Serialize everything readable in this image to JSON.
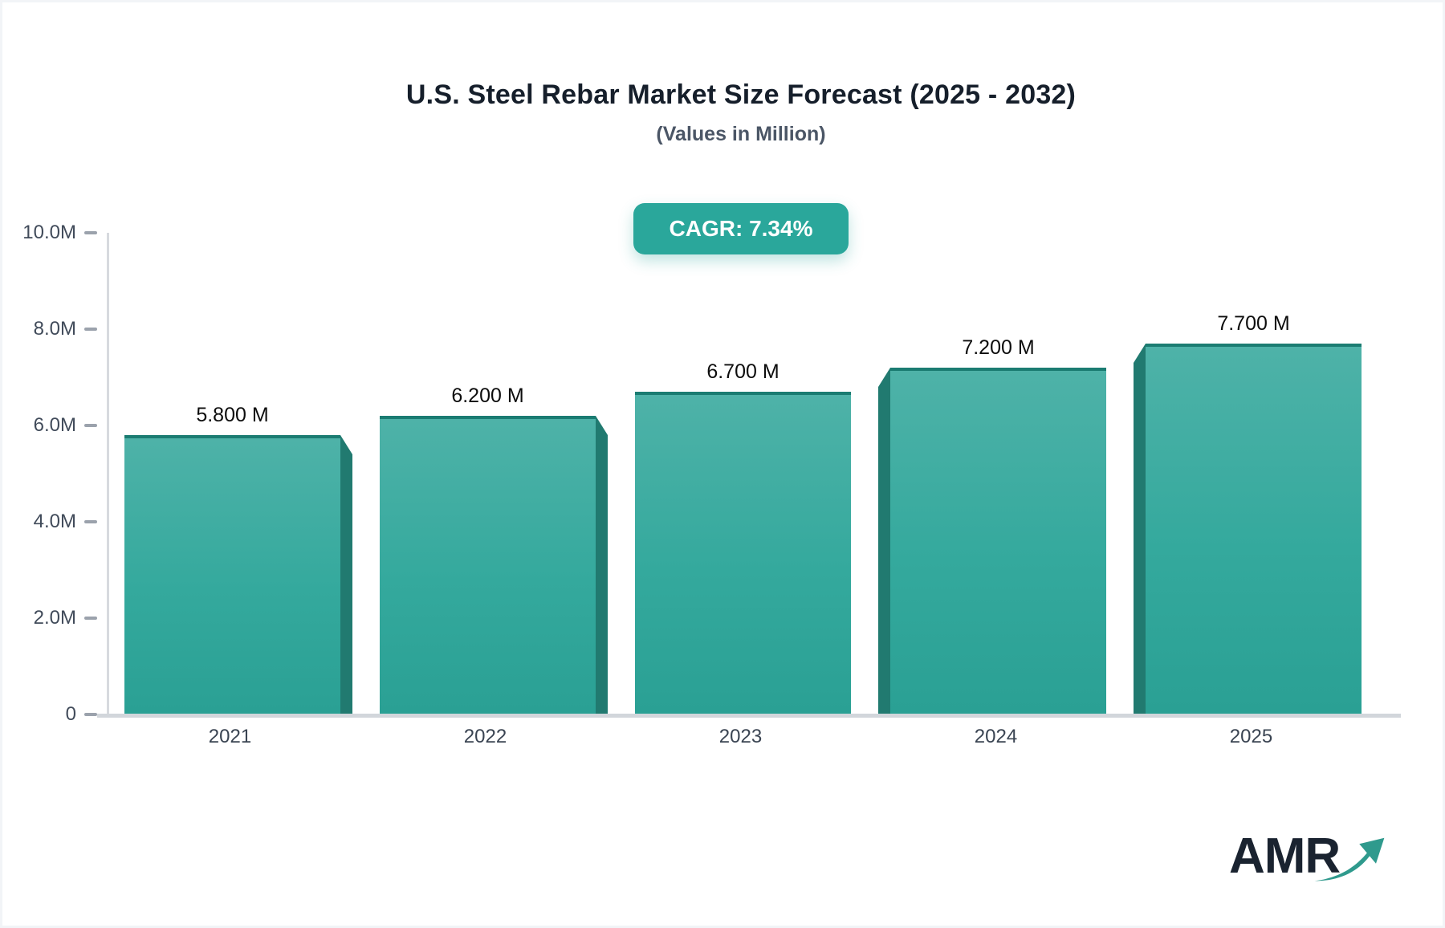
{
  "header": {
    "title": "U.S. Steel Rebar Market Size Forecast (2025 - 2032)",
    "subtitle": "(Values in Million)",
    "cagr_badge": "CAGR: 7.34%"
  },
  "chart_data": {
    "type": "bar",
    "title": "U.S. Steel Rebar Market Size Forecast (2025 - 2032)",
    "subtitle": "(Values in Million)",
    "unit": "Million",
    "cagr": "7.34%",
    "categories": [
      "2021",
      "2022",
      "2023",
      "2024",
      "2025"
    ],
    "values": [
      5.8,
      6.2,
      6.7,
      7.2,
      7.7
    ],
    "value_labels": [
      "5.800 M",
      "6.200 M",
      "6.700 M",
      "7.200 M",
      "7.700 M"
    ],
    "ylim": [
      0,
      10
    ],
    "yticks": [
      {
        "value": 0,
        "label": "0"
      },
      {
        "value": 2,
        "label": "2.0M"
      },
      {
        "value": 4,
        "label": "4.0M"
      },
      {
        "value": 6,
        "label": "6.0M"
      },
      {
        "value": 8,
        "label": "8.0M"
      },
      {
        "value": 10,
        "label": "10.0M"
      }
    ],
    "grid": false,
    "legend": "none",
    "colors": {
      "bar_top": "#4eb2a8",
      "bar_bottom": "#2aa094",
      "bar_top_border": "#1b7c72",
      "bar_side_face": "#217a70",
      "badge": "#2aa79b",
      "axis": "#d2d6db"
    }
  },
  "footer": {
    "logo_text": "AMR",
    "logo_arrow_color": "#2f9a8d"
  }
}
